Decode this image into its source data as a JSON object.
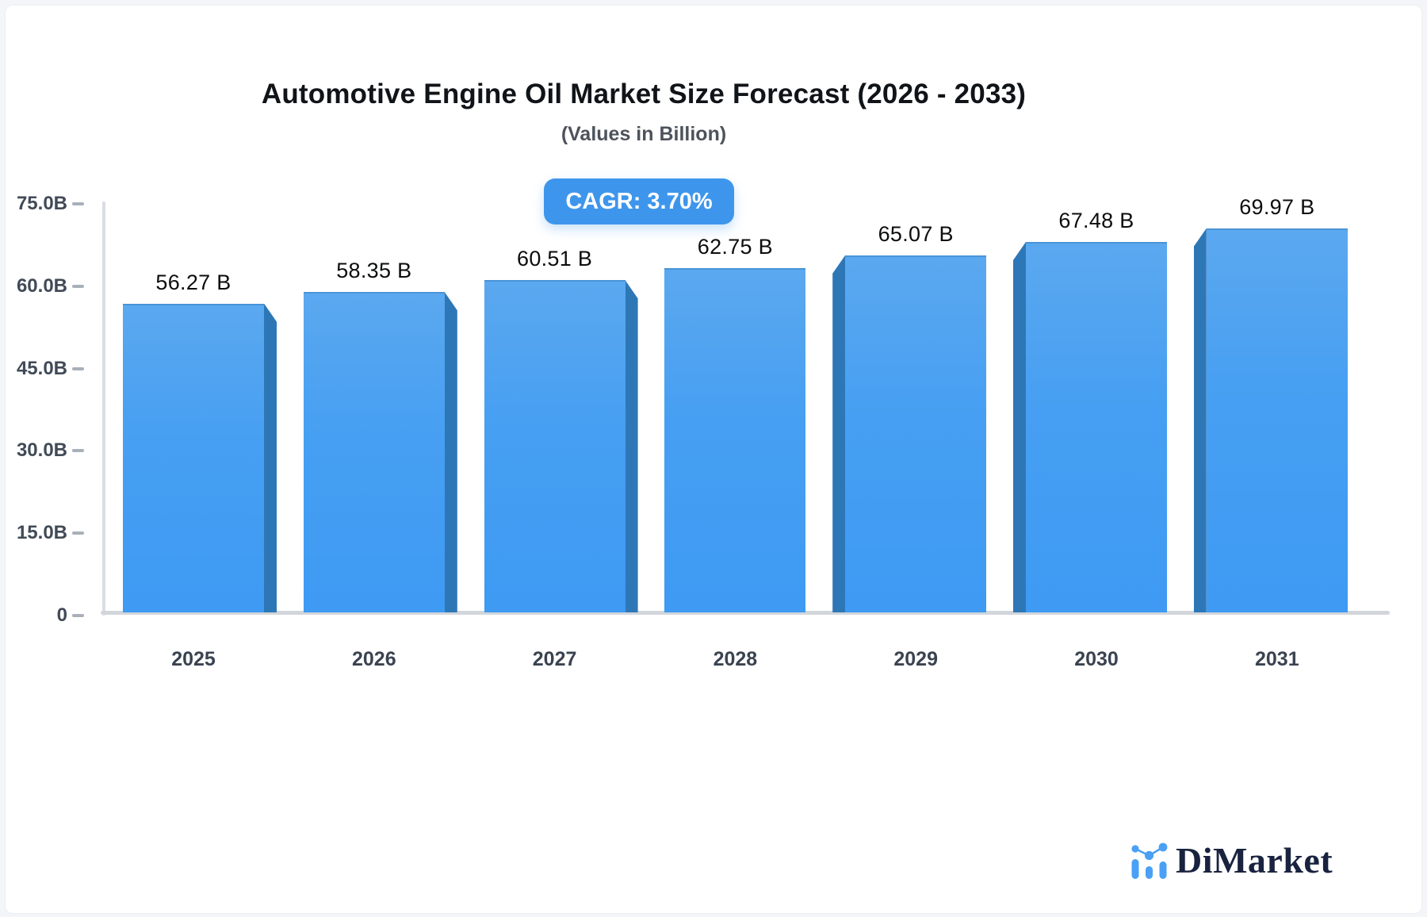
{
  "title": "Automotive Engine Oil Market Size Forecast (2026 - 2033)",
  "subtitle": "(Values in Billion)",
  "badge": {
    "label": "CAGR: 3.70%",
    "bg": "#3E96EC",
    "text_color": "#FFFFFF"
  },
  "chart_data": {
    "type": "bar",
    "categories": [
      "2025",
      "2026",
      "2027",
      "2028",
      "2029",
      "2030",
      "2031"
    ],
    "values": [
      56.27,
      58.35,
      60.51,
      62.75,
      65.07,
      67.48,
      69.97
    ],
    "value_labels": [
      "56.27 B",
      "58.35 B",
      "60.51 B",
      "62.75 B",
      "65.07 B",
      "67.48 B",
      "69.97 B"
    ],
    "y_ticks": [
      {
        "label": "75.0B",
        "value": 75
      },
      {
        "label": "60.0B",
        "value": 60
      },
      {
        "label": "45.0B",
        "value": 45
      },
      {
        "label": "30.0B",
        "value": 30
      },
      {
        "label": "15.0B",
        "value": 15
      },
      {
        "label": "0",
        "value": 0
      }
    ],
    "ylim": [
      0,
      75
    ],
    "grid": false,
    "legend": false,
    "bar_color_top": "#5BA8EF",
    "bar_color_bottom": "#3E9AF3",
    "bar_side_color": "#2E77B7",
    "axis_color": "#D2D6DB"
  },
  "logo": {
    "text": "DiMarket",
    "icon": "bar-chart-dots-icon",
    "text_color": "#19233F",
    "icon_color": "#4AA0F4"
  }
}
